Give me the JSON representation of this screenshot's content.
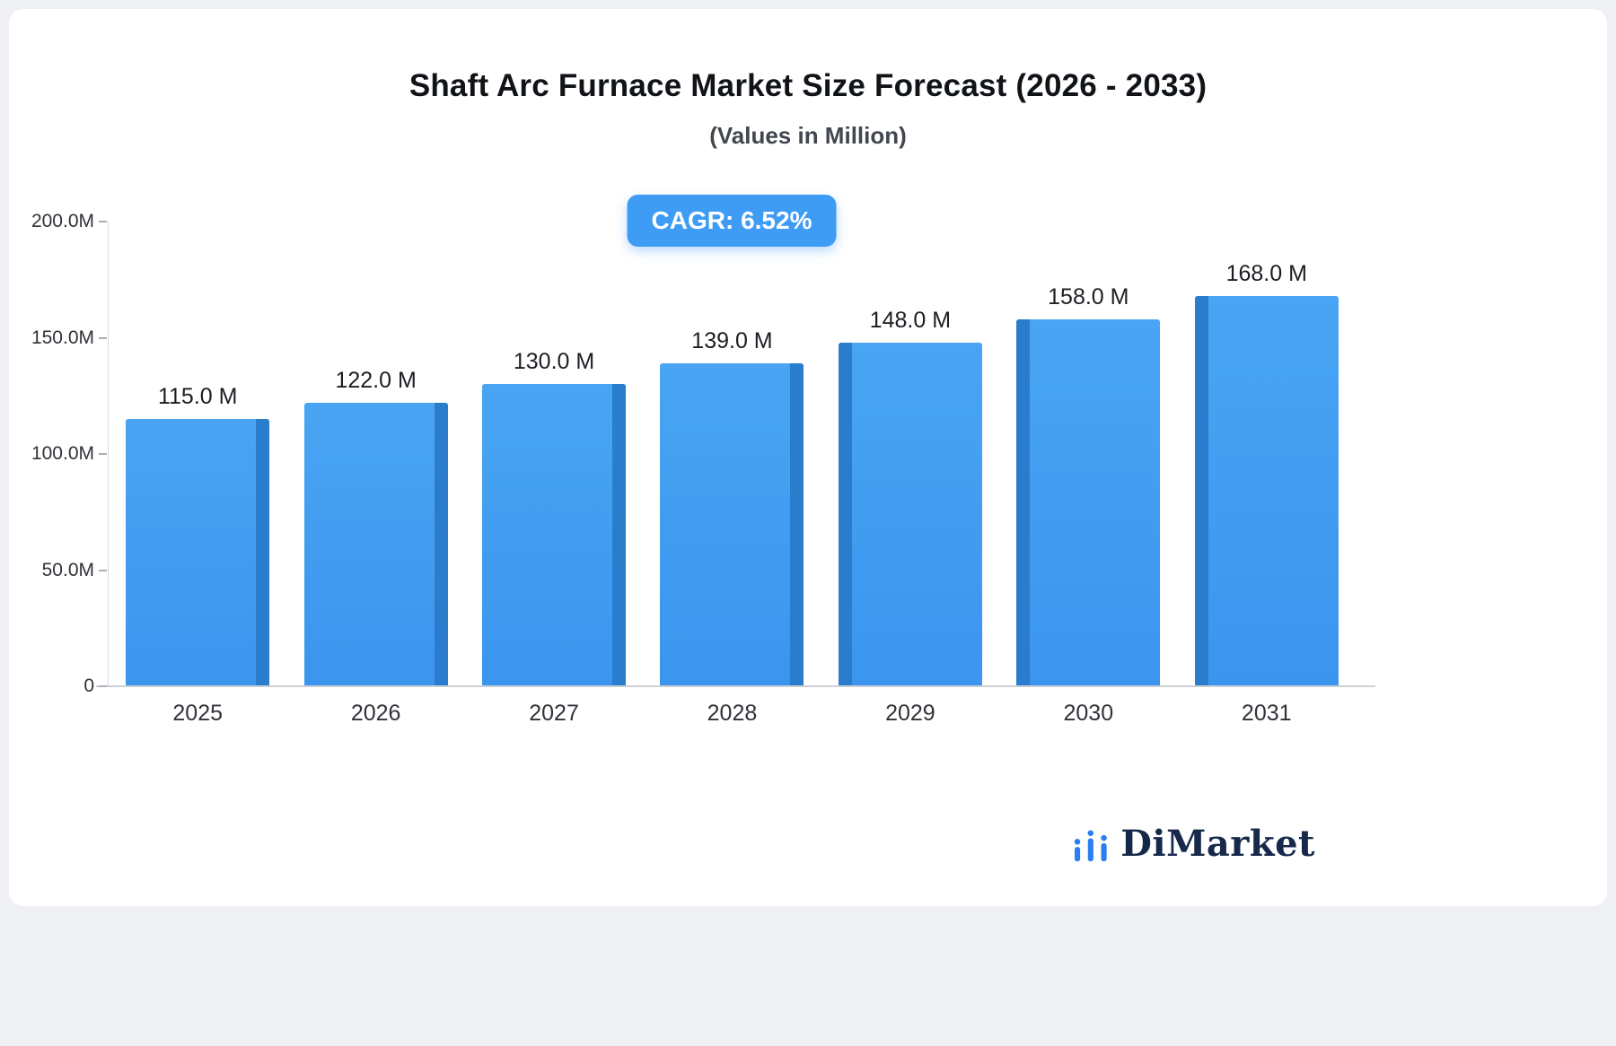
{
  "page": {
    "background_color": "#eef0f3",
    "card_color": "#ffffff"
  },
  "header": {
    "title": "Shaft Arc Furnace Market Size Forecast (2026 - 2033)",
    "subtitle": "(Values in Million)"
  },
  "badge": {
    "label": "CAGR: 6.52%",
    "color": "#3f9cf4",
    "text_color": "#ffffff"
  },
  "chart_data": {
    "type": "bar",
    "title": "Shaft Arc Furnace Market Size Forecast (2026 - 2033)",
    "subtitle": "(Values in Million)",
    "categories": [
      "2025",
      "2026",
      "2027",
      "2028",
      "2029",
      "2030",
      "2031"
    ],
    "values": [
      115,
      122,
      130,
      139,
      148,
      158,
      168
    ],
    "value_labels": [
      "115.0 M",
      "122.0 M",
      "130.0 M",
      "139.0 M",
      "148.0 M",
      "158.0 M",
      "168.0 M"
    ],
    "xlabel": "",
    "ylabel": "",
    "ylim": [
      0,
      200
    ],
    "yticks": [
      {
        "value": 0,
        "label": "0"
      },
      {
        "value": 50,
        "label": "50.0M"
      },
      {
        "value": 100,
        "label": "100.0M"
      },
      {
        "value": 150,
        "label": "150.0M"
      },
      {
        "value": 200,
        "label": "200.0M"
      }
    ],
    "grid": false,
    "legend": false,
    "bar_color_top": "#49a5f3",
    "bar_color_bottom": "#3b95ee",
    "bar_shadow_color": "#2a7ccd"
  },
  "logo": {
    "icon": "bar-chart-icon",
    "icon_color": "#2d7df2",
    "text": "DiMarket",
    "text_color": "#16294a"
  }
}
